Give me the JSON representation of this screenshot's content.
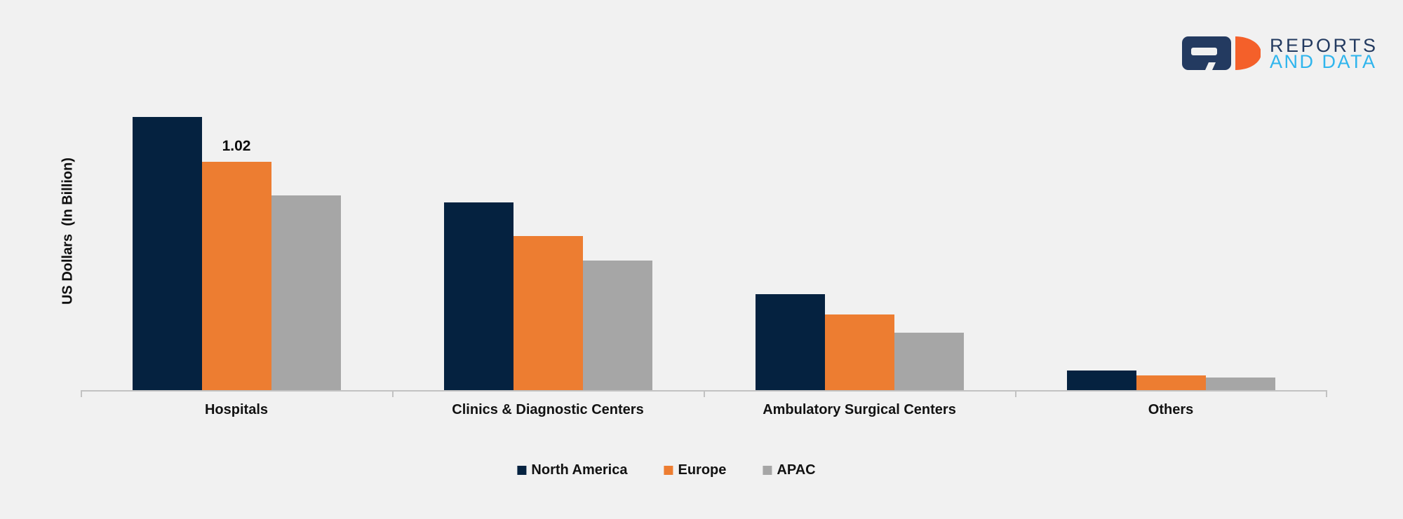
{
  "colors": {
    "background": "#f1f1f1",
    "axis": "#c2c2c2",
    "logo_navy": "#233a60",
    "logo_blue": "#2fb5ed",
    "logo_orange": "#f4602a"
  },
  "logo": {
    "line1": "REPORTS",
    "line2": "AND DATA"
  },
  "chart_data": {
    "type": "bar",
    "title": "",
    "xlabel": "",
    "ylabel": "US Dollars  (In Billion)",
    "categories": [
      "Hospitals",
      "Clinics & Diagnostic Centers",
      "Ambulatory Surgical Centers",
      "Others"
    ],
    "series": [
      {
        "name": "North America",
        "color": "#052240",
        "values": [
          1.22,
          0.84,
          0.43,
          0.09
        ]
      },
      {
        "name": "Europe",
        "color": "#ed7d31",
        "values": [
          1.02,
          0.69,
          0.34,
          0.07
        ]
      },
      {
        "name": "APAC",
        "color": "#a6a6a6",
        "values": [
          0.87,
          0.58,
          0.26,
          0.06
        ]
      }
    ],
    "data_labels": [
      {
        "series_index": 1,
        "category_index": 0,
        "text": "1.02"
      }
    ],
    "ylim": [
      0,
      1.4
    ],
    "grid": false,
    "value_axis_ticks": "none",
    "legend_position": "bottom"
  }
}
